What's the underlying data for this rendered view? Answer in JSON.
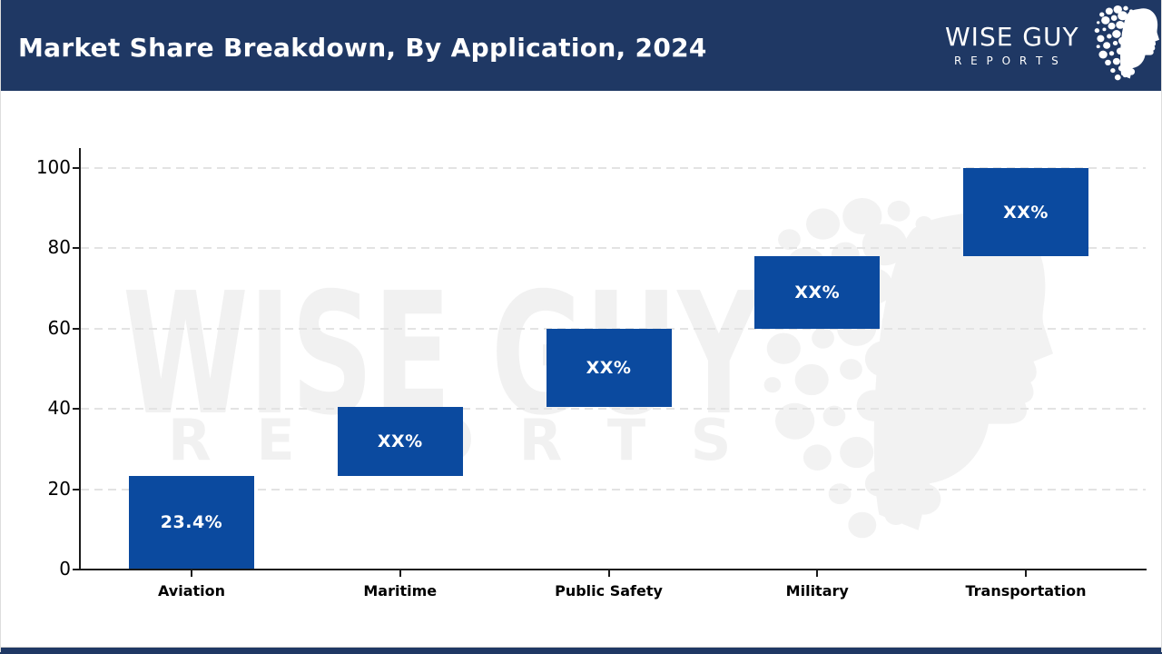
{
  "header": {
    "title": "Market Share Breakdown, By Application, 2024",
    "logo_line1": "WISE GUY",
    "logo_line2": "R E P O R T S"
  },
  "watermark": {
    "line1": "WISE GUY",
    "line2": "R E P O R T S"
  },
  "colors": {
    "header_bg": "#1F3864",
    "bar": "#0B4A9F",
    "bar_label": "#FFFFFF",
    "axis": "#1A1A1A",
    "grid": "#E3E3E3",
    "watermark": "#F1F1F1"
  },
  "chart_data": {
    "type": "bar",
    "subtype": "waterfall",
    "title": "Market Share Breakdown, By Application, 2024",
    "xlabel": "",
    "ylabel": "",
    "ylim": [
      0,
      105
    ],
    "yticks": [
      0,
      20,
      40,
      60,
      80,
      100
    ],
    "grid": "horizontal-dashed",
    "legend": "none",
    "bar_color": "#0B4A9F",
    "categories": [
      "Aviation",
      "Maritime",
      "Public Safety",
      "Military",
      "Transportation"
    ],
    "segments": [
      {
        "category": "Aviation",
        "start": 0,
        "end": 23.4,
        "value_label": "23.4%"
      },
      {
        "category": "Maritime",
        "start": 23.4,
        "end": 40.5,
        "value_label": "XX%"
      },
      {
        "category": "Public Safety",
        "start": 40.5,
        "end": 60,
        "value_label": "XX%"
      },
      {
        "category": "Military",
        "start": 60,
        "end": 78,
        "value_label": "XX%"
      },
      {
        "category": "Transportation",
        "start": 78,
        "end": 100,
        "value_label": "XX%"
      }
    ]
  }
}
